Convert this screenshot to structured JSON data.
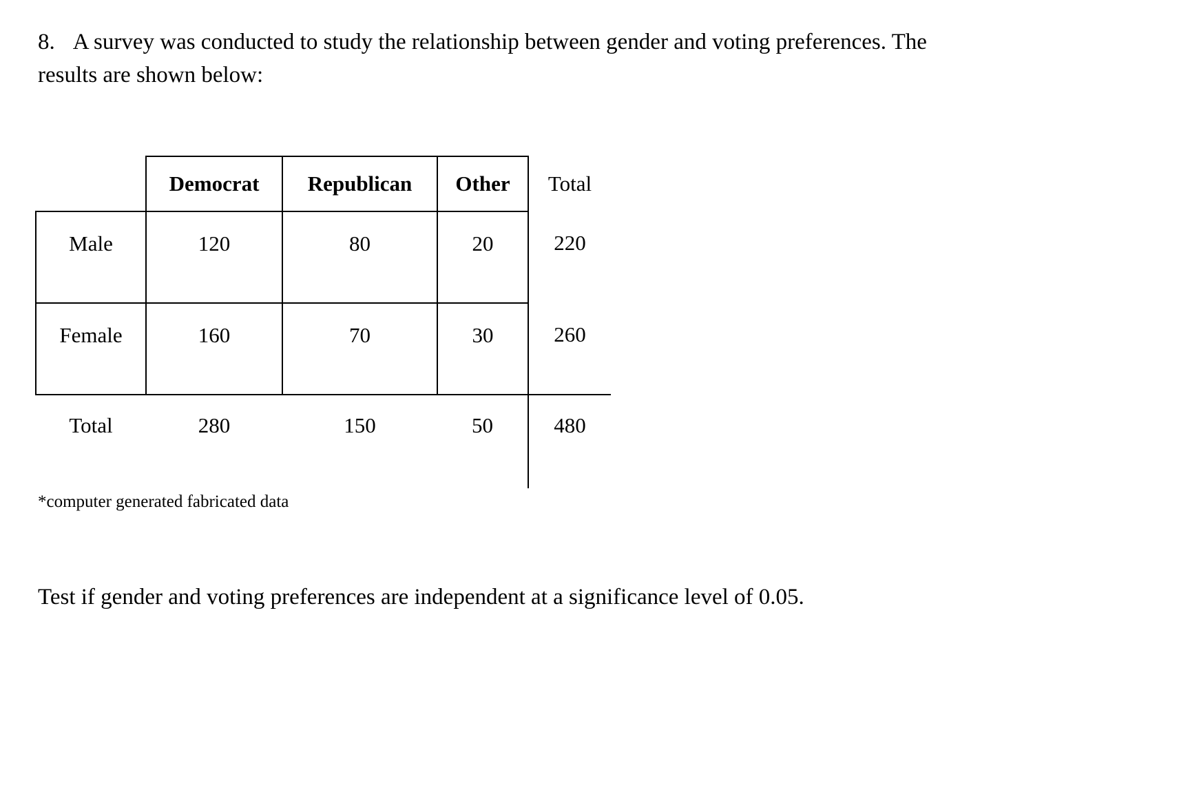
{
  "question": {
    "number": "8.",
    "text": "A survey was conducted to study the relationship between gender and voting preferences. The results are shown below:"
  },
  "table": {
    "col_headers": [
      "Democrat",
      "Republican",
      "Other",
      "Total"
    ],
    "rows": [
      {
        "label": "Male",
        "values": [
          "120",
          "80",
          "20",
          "220"
        ]
      },
      {
        "label": "Female",
        "values": [
          "160",
          "70",
          "30",
          "260"
        ]
      },
      {
        "label": "Total",
        "values": [
          "280",
          "150",
          "50",
          "480"
        ]
      }
    ]
  },
  "footnote": "*computer generated fabricated data",
  "task": "Test if gender and voting preferences are independent at a significance level of 0.05.",
  "colors": {
    "background": "#ffffff",
    "text": "#000000",
    "table_border": "#000000"
  }
}
